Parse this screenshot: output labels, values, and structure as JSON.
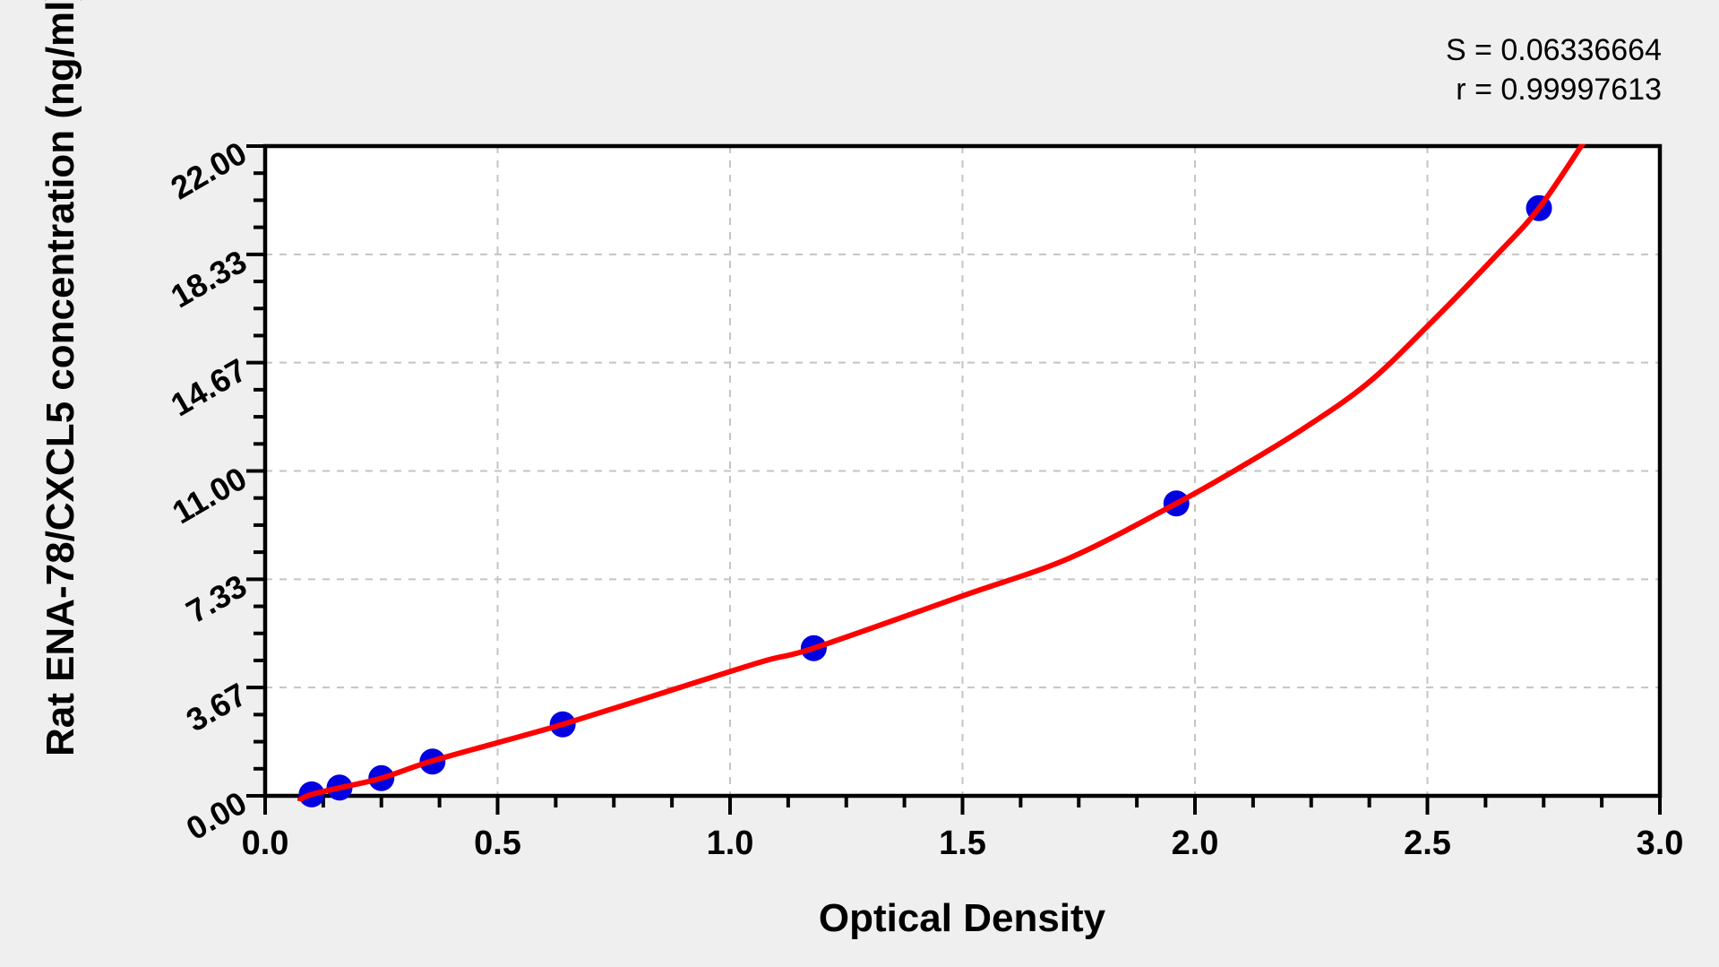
{
  "stats": {
    "s_value": "S = 0.06336664",
    "r_value": "r = 0.99997613"
  },
  "chart_data": {
    "type": "scatter",
    "title": "",
    "xlabel": "Optical Density",
    "ylabel": "Rat ENA-78/CXCL5 concentration (ng/ml)",
    "xlim": [
      0,
      3
    ],
    "ylim": [
      0,
      22
    ],
    "x_tick_labels": [
      "0.0",
      "0.5",
      "1.0",
      "1.5",
      "2.0",
      "2.5",
      "3.0"
    ],
    "y_tick_labels": [
      "0.00",
      "3.67",
      "7.33",
      "11.00",
      "14.67",
      "18.33",
      "22.00"
    ],
    "x_minor_divisions_per_major": 4,
    "y_minor_divisions_per_major": 4,
    "grid": {
      "style": "dashed",
      "shown": true,
      "on": "major-ticks"
    },
    "legend": "none",
    "series": [
      {
        "name": "standard-points",
        "type": "scatter",
        "marker": "circle",
        "color": "#0000e0",
        "points": [
          [
            0.1,
            0.05
          ],
          [
            0.16,
            0.28
          ],
          [
            0.25,
            0.6
          ],
          [
            0.36,
            1.16
          ],
          [
            0.64,
            2.42
          ],
          [
            1.18,
            5.0
          ],
          [
            1.96,
            9.9
          ],
          [
            2.74,
            19.9
          ]
        ]
      },
      {
        "name": "fitted-curve",
        "type": "line",
        "color": "#ff0000",
        "points": [
          [
            0.075,
            -0.12
          ],
          [
            0.1,
            0.05
          ],
          [
            0.162,
            0.28
          ],
          [
            0.25,
            0.6
          ],
          [
            0.355,
            1.16
          ],
          [
            0.5,
            1.8
          ],
          [
            0.64,
            2.42
          ],
          [
            0.85,
            3.46
          ],
          [
            1.07,
            4.55
          ],
          [
            1.18,
            5.0
          ],
          [
            1.5,
            6.77
          ],
          [
            1.73,
            8.05
          ],
          [
            1.96,
            9.9
          ],
          [
            2.1,
            11.15
          ],
          [
            2.23,
            12.4
          ],
          [
            2.37,
            13.95
          ],
          [
            2.5,
            15.9
          ],
          [
            2.65,
            18.33
          ],
          [
            2.74,
            19.9
          ],
          [
            2.835,
            22.1
          ]
        ]
      }
    ],
    "annotations": [
      "S = 0.06336664",
      "r = 0.99997613"
    ],
    "colors": {
      "background": "#efefef",
      "plot_background": "#ffffff",
      "frame": "#000000",
      "grid": "#c4c4c4",
      "curve": "#ff0000",
      "points": "#0000e0",
      "text": "#000000"
    }
  }
}
